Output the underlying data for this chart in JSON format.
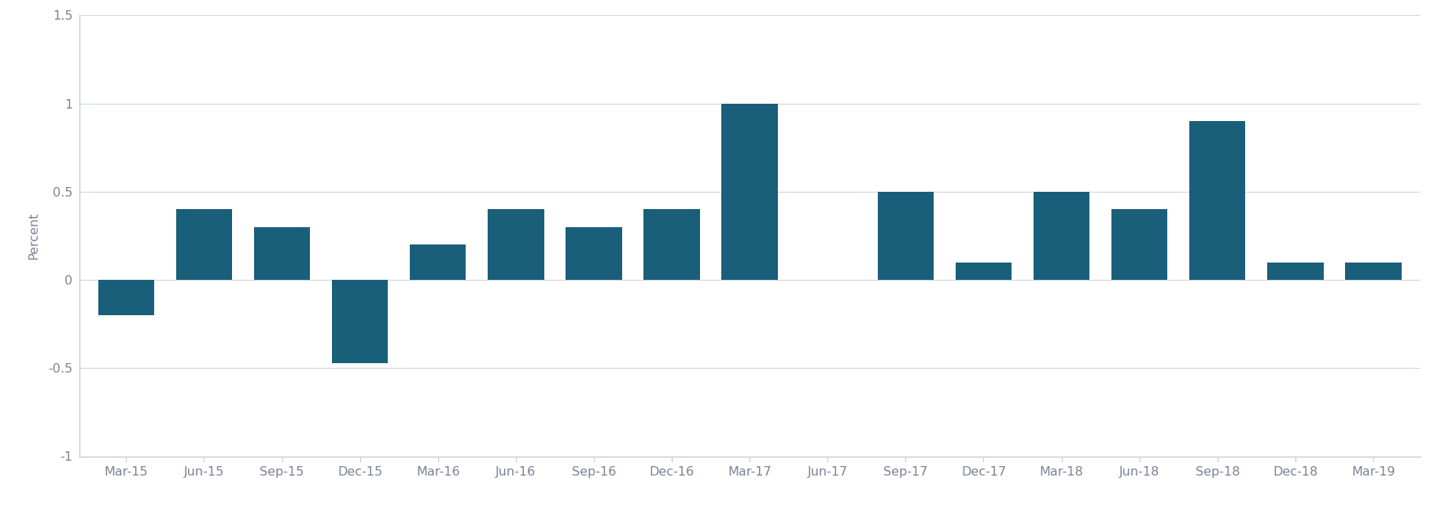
{
  "categories": [
    "Mar-15",
    "Jun-15",
    "Sep-15",
    "Dec-15",
    "Mar-16",
    "Jun-16",
    "Sep-16",
    "Dec-16",
    "Mar-17",
    "Jun-17",
    "Sep-17",
    "Dec-17",
    "Mar-18",
    "Jun-18",
    "Sep-18",
    "Dec-18",
    "Mar-19"
  ],
  "values": [
    -0.2,
    0.4,
    0.3,
    -0.47,
    0.2,
    0.4,
    0.3,
    0.4,
    1.0,
    0.0,
    0.5,
    0.1,
    0.5,
    0.4,
    0.9,
    0.1,
    0.1
  ],
  "bar_color": "#1a5f7a",
  "ylabel": "Percent",
  "ylim": [
    -1.0,
    1.5
  ],
  "yticks": [
    -1.0,
    -0.5,
    0,
    0.5,
    1.0,
    1.5
  ],
  "background_color": "#ffffff",
  "grid_color": "#d0d6df",
  "spine_color": "#c5cdd8",
  "tick_label_color": "#7a8494",
  "ylabel_color": "#7a8494",
  "tick_label_fontsize": 11.5,
  "ylabel_fontsize": 11.5,
  "bar_width": 0.72
}
